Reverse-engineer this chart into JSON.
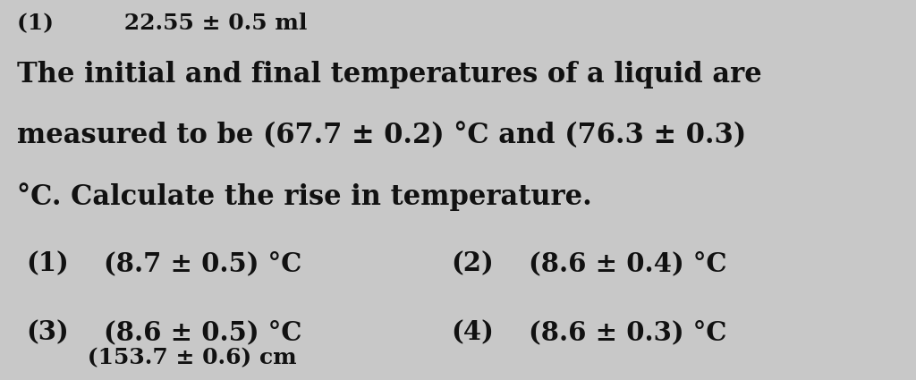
{
  "bg_color": "#c8c8c8",
  "top_partial_text": "(1)         22.55 ± 0.5 ml",
  "question_text_line1": "The initial and final temperatures of a liquid are",
  "question_text_line2": "measured to be (67.7 ± 0.2) °C and (76.3 ± 0.3)",
  "question_text_line3": "°C. Calculate the rise in temperature.",
  "option1_label": "(1)",
  "option1_value": "(8.7 ± 0.5) °C",
  "option2_label": "(2)",
  "option2_value": "(8.6 ± 0.4) °C",
  "option3_label": "(3)",
  "option3_value": "(8.6 ± 0.5) °C",
  "option4_label": "(4)",
  "option4_value": "(8.6 ± 0.3) °C",
  "bottom_partial_text": "         (153.7 ± 0.6) cm",
  "font_size_question": 22,
  "font_size_options": 21,
  "font_size_top": 18,
  "text_color": "#111111"
}
